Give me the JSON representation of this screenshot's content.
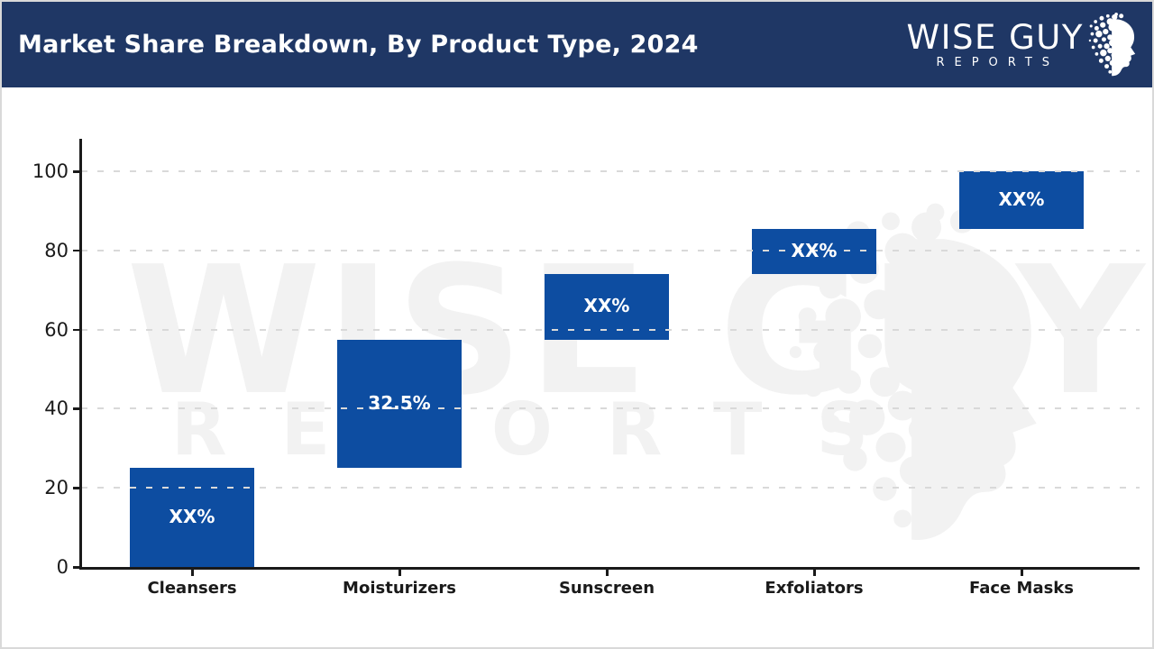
{
  "header": {
    "title": "Market Share Breakdown, By Product Type, 2024",
    "logo": {
      "wordmark": "WISE GUY",
      "subtitle": "REPORTS"
    }
  },
  "watermark": {
    "wordmark": "WISE GUY",
    "subtitle": "REPORTS"
  },
  "chart_data": {
    "type": "bar",
    "subtype": "floating-waterfall",
    "title": "Market Share Breakdown, By Product Type, 2024",
    "categories": [
      "Cleansers",
      "Moisturizers",
      "Sunscreen",
      "Exfoliators",
      "Face Masks"
    ],
    "bars": [
      {
        "category": "Cleansers",
        "start": 0,
        "end": 25,
        "label": "XX%"
      },
      {
        "category": "Moisturizers",
        "start": 25,
        "end": 57.5,
        "label": "32.5%"
      },
      {
        "category": "Sunscreen",
        "start": 57.5,
        "end": 74,
        "label": "XX%"
      },
      {
        "category": "Exfoliators",
        "start": 74,
        "end": 85.5,
        "label": "XX%"
      },
      {
        "category": "Face Masks",
        "start": 85.5,
        "end": 100,
        "label": "XX%"
      }
    ],
    "y_ticks": [
      0,
      20,
      40,
      60,
      80,
      100
    ],
    "ylim": [
      0,
      108
    ],
    "xlabel": "",
    "ylabel": "",
    "grid": "horizontal-dashed",
    "legend": "none",
    "bar_color": "#0d4da1",
    "bar_label_color": "#ffffff"
  },
  "colors": {
    "header_bg": "#1f3765",
    "bar": "#0d4da1",
    "axis_text": "#1a1a1a",
    "gridline": "#d9d9d9",
    "watermark": "#f2f2f2",
    "page_border": "#d9d9d9"
  }
}
